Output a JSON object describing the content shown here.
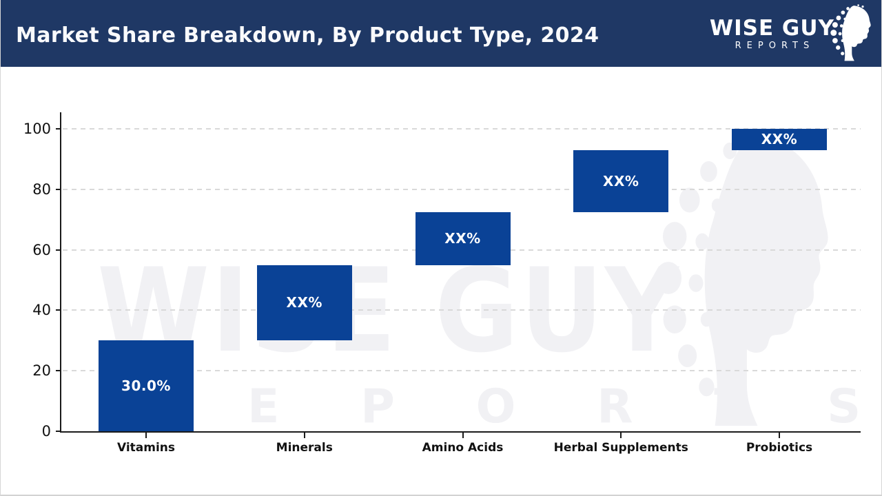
{
  "header": {
    "title": "Market Share Breakdown, By Product Type, 2024",
    "bg_color": "#1f3865",
    "logo": {
      "line1": "WISE GUY",
      "line2": "REPORTS"
    }
  },
  "watermark": {
    "line1": "WISE GUY",
    "line2": "R E P O R T S"
  },
  "chart_data": {
    "type": "bar",
    "subtype": "waterfall",
    "title": "Market Share Breakdown, By Product Type, 2024",
    "categories": [
      "Vitamins",
      "Minerals",
      "Amino Acids",
      "Herbal Supplements",
      "Probiotics"
    ],
    "values": [
      30,
      25,
      17.5,
      20.5,
      7
    ],
    "cumulative_start": [
      0,
      30,
      55,
      72.5,
      93
    ],
    "cumulative_end": [
      30,
      55,
      72.5,
      93,
      100
    ],
    "bar_labels": [
      "30.0%",
      "XX%",
      "XX%",
      "XX%",
      "XX%"
    ],
    "unit": "%",
    "y_ticks": [
      0,
      20,
      40,
      60,
      80,
      100
    ],
    "ylim": [
      0,
      105
    ],
    "grid": "horizontal-dashed",
    "legend": "none",
    "bar_color": "#0a4296",
    "label_color": "#ffffff",
    "axis_color": "#1a1a1a"
  }
}
